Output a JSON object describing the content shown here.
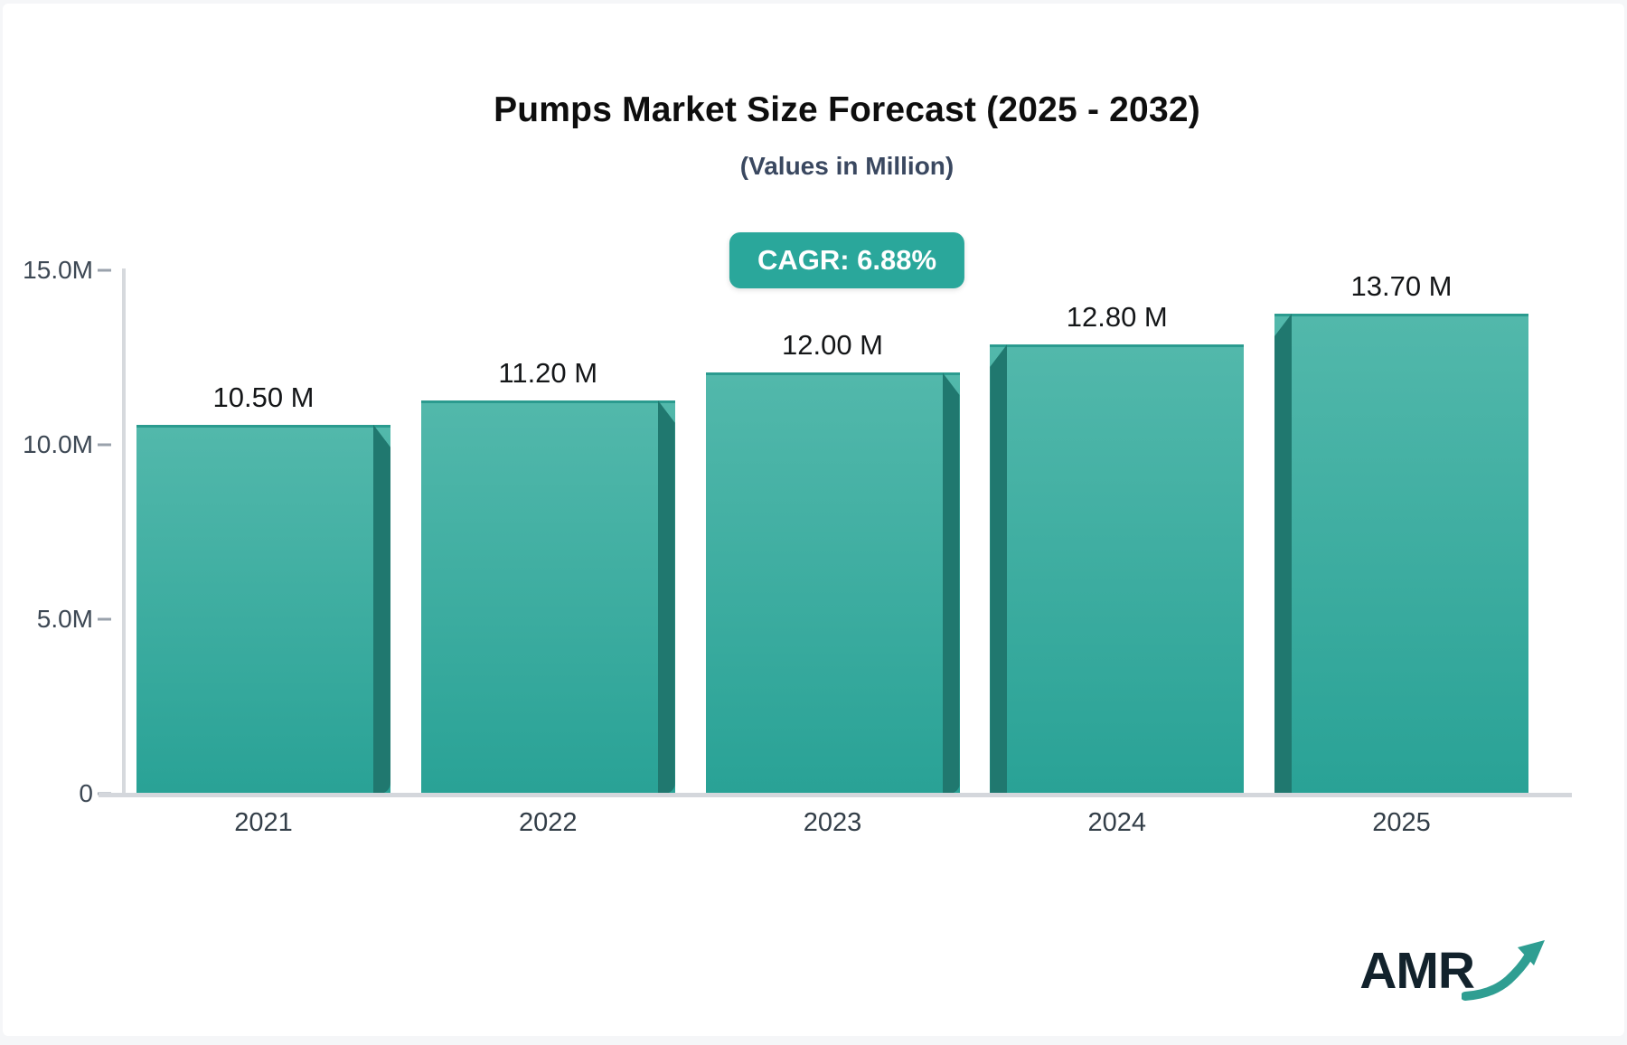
{
  "page": {
    "background": "#f5f6f8",
    "card_background": "#ffffff"
  },
  "chart_data": {
    "type": "bar",
    "title": "Pumps Market Size Forecast (2025 - 2032)",
    "subtitle": "(Values in Million)",
    "badge_label": "CAGR: 6.88%",
    "categories": [
      "2021",
      "2022",
      "2023",
      "2024",
      "2025"
    ],
    "values": [
      10.5,
      11.2,
      12.0,
      12.8,
      13.7
    ],
    "value_labels": [
      "10.50 M",
      "11.20 M",
      "12.00 M",
      "12.80 M",
      "13.70 M"
    ],
    "ylim": [
      0,
      15
    ],
    "yticks": [
      15,
      10,
      5,
      0
    ],
    "ytick_labels": [
      "15.0M",
      "10.0M",
      "5.0M",
      "0"
    ],
    "xlabel": "",
    "ylabel": "",
    "grid": false,
    "legend_position": "none",
    "colors": {
      "bar_gradient_top": "#52b8ab",
      "bar_gradient_bottom": "#29a296",
      "bar_top_border": "#2b9b8f",
      "bar_3d_edge": "#20786f",
      "badge_background": "#2aa79b",
      "badge_text": "#ffffff",
      "axis_line": "#d5d8dc",
      "tick_text": "#3d4854"
    }
  },
  "branding": {
    "logo_text": "AMR",
    "logo_arrow_color": "#2f9e92"
  }
}
